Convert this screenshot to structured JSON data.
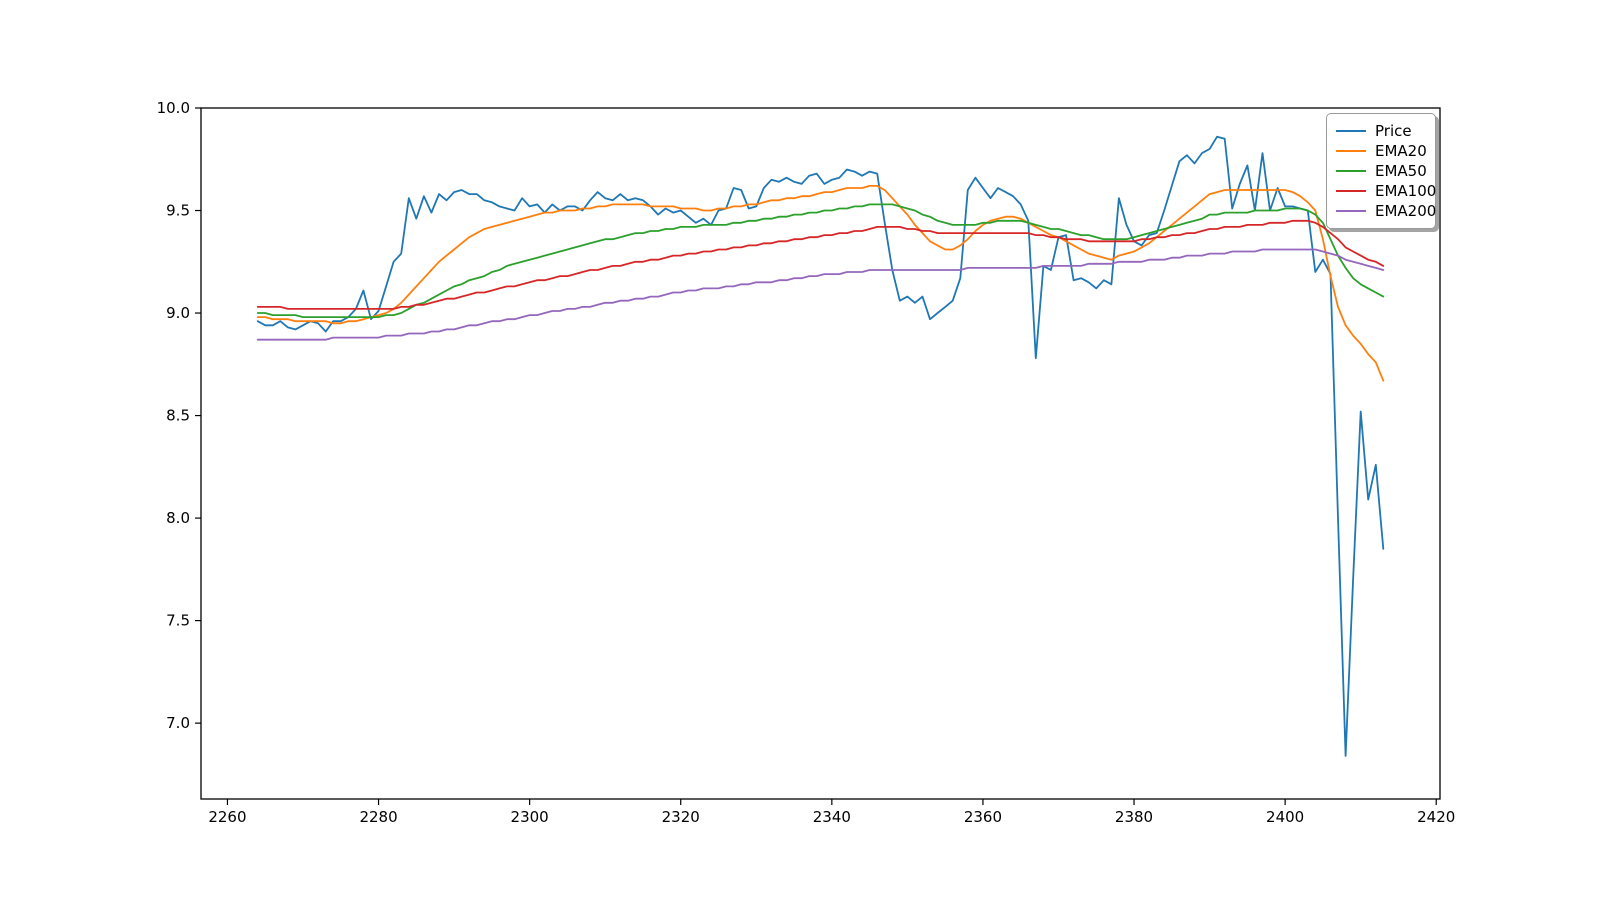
{
  "figure": {
    "background": "#ffffff"
  },
  "axes": {
    "xlim": [
      2256.5,
      2420.5
    ],
    "ylim": [
      6.63,
      10.0
    ],
    "x_ticks": [
      {
        "value": 2260,
        "label": "2260"
      },
      {
        "value": 2280,
        "label": "2280"
      },
      {
        "value": 2300,
        "label": "2300"
      },
      {
        "value": 2320,
        "label": "2320"
      },
      {
        "value": 2340,
        "label": "2340"
      },
      {
        "value": 2360,
        "label": "2360"
      },
      {
        "value": 2380,
        "label": "2380"
      },
      {
        "value": 2400,
        "label": "2400"
      },
      {
        "value": 2420,
        "label": "2420"
      }
    ],
    "y_ticks": [
      {
        "value": 7.0,
        "label": "7.0"
      },
      {
        "value": 7.5,
        "label": "7.5"
      },
      {
        "value": 8.0,
        "label": "8.0"
      },
      {
        "value": 8.5,
        "label": "8.5"
      },
      {
        "value": 9.0,
        "label": "9.0"
      },
      {
        "value": 9.5,
        "label": "9.5"
      },
      {
        "value": 10.0,
        "label": "10.0"
      }
    ],
    "spine_color": "#000000",
    "grid": false
  },
  "legend": {
    "position": "upper right",
    "entries": [
      {
        "label": "Price",
        "color": "#1f77b4"
      },
      {
        "label": "EMA20",
        "color": "#ff7f0e"
      },
      {
        "label": "EMA50",
        "color": "#2ca02c"
      },
      {
        "label": "EMA100",
        "color": "#d62728"
      },
      {
        "label": "EMA200",
        "color": "#9467bd"
      }
    ]
  },
  "chart_data": {
    "type": "line",
    "title": "",
    "xlabel": "",
    "ylabel": "",
    "xlim": [
      2256.5,
      2420.5
    ],
    "ylim": [
      6.63,
      10.0
    ],
    "grid": false,
    "legend_position": "upper right",
    "x_start": 2264,
    "x_step": 1,
    "series": [
      {
        "name": "Price",
        "color": "#1f77b4",
        "values": [
          8.96,
          8.94,
          8.94,
          8.96,
          8.93,
          8.92,
          8.94,
          8.96,
          8.95,
          8.91,
          8.96,
          8.96,
          8.98,
          9.02,
          9.11,
          8.97,
          9.01,
          9.13,
          9.25,
          9.29,
          9.56,
          9.46,
          9.57,
          9.49,
          9.58,
          9.55,
          9.59,
          9.6,
          9.58,
          9.58,
          9.55,
          9.54,
          9.52,
          9.51,
          9.5,
          9.56,
          9.52,
          9.53,
          9.49,
          9.53,
          9.5,
          9.52,
          9.52,
          9.5,
          9.55,
          9.59,
          9.56,
          9.55,
          9.58,
          9.55,
          9.56,
          9.55,
          9.52,
          9.48,
          9.51,
          9.49,
          9.5,
          9.47,
          9.44,
          9.46,
          9.43,
          9.5,
          9.51,
          9.61,
          9.6,
          9.51,
          9.52,
          9.61,
          9.65,
          9.64,
          9.66,
          9.64,
          9.63,
          9.67,
          9.68,
          9.63,
          9.65,
          9.66,
          9.7,
          9.69,
          9.67,
          9.69,
          9.68,
          9.44,
          9.21,
          9.06,
          9.08,
          9.05,
          9.08,
          8.97,
          9.0,
          9.03,
          9.06,
          9.17,
          9.6,
          9.66,
          9.61,
          9.56,
          9.61,
          9.59,
          9.57,
          9.53,
          9.45,
          8.78,
          9.23,
          9.21,
          9.37,
          9.38,
          9.16,
          9.17,
          9.15,
          9.12,
          9.16,
          9.14,
          9.56,
          9.43,
          9.35,
          9.33,
          9.38,
          9.39,
          9.5,
          9.62,
          9.74,
          9.77,
          9.73,
          9.78,
          9.8,
          9.86,
          9.85,
          9.51,
          9.63,
          9.72,
          9.5,
          9.78,
          9.5,
          9.61,
          9.52,
          9.52,
          9.51,
          9.5,
          9.2,
          9.26,
          9.19,
          8.0,
          6.84,
          7.7,
          8.52,
          8.09,
          8.26,
          7.85
        ]
      },
      {
        "name": "EMA20",
        "color": "#ff7f0e",
        "values": [
          8.98,
          8.98,
          8.97,
          8.97,
          8.97,
          8.96,
          8.96,
          8.96,
          8.96,
          8.96,
          8.95,
          8.95,
          8.96,
          8.96,
          8.97,
          8.98,
          8.99,
          9.0,
          9.02,
          9.05,
          9.09,
          9.13,
          9.17,
          9.21,
          9.25,
          9.28,
          9.31,
          9.34,
          9.37,
          9.39,
          9.41,
          9.42,
          9.43,
          9.44,
          9.45,
          9.46,
          9.47,
          9.48,
          9.49,
          9.49,
          9.5,
          9.5,
          9.5,
          9.51,
          9.51,
          9.52,
          9.52,
          9.53,
          9.53,
          9.53,
          9.53,
          9.53,
          9.52,
          9.52,
          9.52,
          9.52,
          9.51,
          9.51,
          9.51,
          9.5,
          9.5,
          9.51,
          9.51,
          9.52,
          9.52,
          9.53,
          9.53,
          9.54,
          9.55,
          9.55,
          9.56,
          9.56,
          9.57,
          9.57,
          9.58,
          9.59,
          9.59,
          9.6,
          9.61,
          9.61,
          9.61,
          9.62,
          9.62,
          9.6,
          9.56,
          9.52,
          9.48,
          9.43,
          9.39,
          9.35,
          9.33,
          9.31,
          9.31,
          9.33,
          9.36,
          9.4,
          9.43,
          9.45,
          9.46,
          9.47,
          9.47,
          9.46,
          9.44,
          9.42,
          9.4,
          9.38,
          9.37,
          9.35,
          9.33,
          9.31,
          9.29,
          9.28,
          9.27,
          9.26,
          9.28,
          9.29,
          9.3,
          9.32,
          9.34,
          9.37,
          9.4,
          9.43,
          9.46,
          9.49,
          9.52,
          9.55,
          9.58,
          9.59,
          9.6,
          9.6,
          9.6,
          9.6,
          9.6,
          9.6,
          9.6,
          9.6,
          9.6,
          9.59,
          9.57,
          9.54,
          9.5,
          9.36,
          9.18,
          9.03,
          8.94,
          8.89,
          8.85,
          8.8,
          8.76,
          8.67
        ]
      },
      {
        "name": "EMA50",
        "color": "#2ca02c",
        "values": [
          9.0,
          9.0,
          8.99,
          8.99,
          8.99,
          8.99,
          8.98,
          8.98,
          8.98,
          8.98,
          8.98,
          8.98,
          8.98,
          8.98,
          8.98,
          8.98,
          8.98,
          8.99,
          8.99,
          9.0,
          9.02,
          9.04,
          9.05,
          9.07,
          9.09,
          9.11,
          9.13,
          9.14,
          9.16,
          9.17,
          9.18,
          9.2,
          9.21,
          9.23,
          9.24,
          9.25,
          9.26,
          9.27,
          9.28,
          9.29,
          9.3,
          9.31,
          9.32,
          9.33,
          9.34,
          9.35,
          9.36,
          9.36,
          9.37,
          9.38,
          9.39,
          9.39,
          9.4,
          9.4,
          9.41,
          9.41,
          9.42,
          9.42,
          9.42,
          9.43,
          9.43,
          9.43,
          9.43,
          9.44,
          9.44,
          9.45,
          9.45,
          9.46,
          9.46,
          9.47,
          9.47,
          9.48,
          9.48,
          9.49,
          9.49,
          9.5,
          9.5,
          9.51,
          9.51,
          9.52,
          9.52,
          9.53,
          9.53,
          9.53,
          9.53,
          9.52,
          9.51,
          9.5,
          9.48,
          9.47,
          9.45,
          9.44,
          9.43,
          9.43,
          9.43,
          9.43,
          9.44,
          9.44,
          9.45,
          9.45,
          9.45,
          9.45,
          9.44,
          9.43,
          9.42,
          9.41,
          9.41,
          9.4,
          9.39,
          9.38,
          9.38,
          9.37,
          9.36,
          9.36,
          9.36,
          9.36,
          9.37,
          9.38,
          9.39,
          9.4,
          9.41,
          9.42,
          9.43,
          9.44,
          9.45,
          9.46,
          9.48,
          9.48,
          9.49,
          9.49,
          9.49,
          9.49,
          9.5,
          9.5,
          9.5,
          9.5,
          9.51,
          9.51,
          9.51,
          9.5,
          9.48,
          9.44,
          9.36,
          9.28,
          9.22,
          9.17,
          9.14,
          9.12,
          9.1,
          9.08
        ]
      },
      {
        "name": "EMA100",
        "color": "#d62728",
        "values": [
          9.03,
          9.03,
          9.03,
          9.03,
          9.02,
          9.02,
          9.02,
          9.02,
          9.02,
          9.02,
          9.02,
          9.02,
          9.02,
          9.02,
          9.02,
          9.02,
          9.02,
          9.02,
          9.02,
          9.03,
          9.03,
          9.04,
          9.04,
          9.05,
          9.06,
          9.07,
          9.07,
          9.08,
          9.09,
          9.1,
          9.1,
          9.11,
          9.12,
          9.13,
          9.13,
          9.14,
          9.15,
          9.16,
          9.16,
          9.17,
          9.18,
          9.18,
          9.19,
          9.2,
          9.21,
          9.21,
          9.22,
          9.23,
          9.23,
          9.24,
          9.25,
          9.25,
          9.26,
          9.26,
          9.27,
          9.28,
          9.28,
          9.29,
          9.29,
          9.3,
          9.3,
          9.31,
          9.31,
          9.32,
          9.32,
          9.33,
          9.33,
          9.34,
          9.34,
          9.35,
          9.35,
          9.36,
          9.36,
          9.37,
          9.37,
          9.38,
          9.38,
          9.39,
          9.39,
          9.4,
          9.4,
          9.41,
          9.42,
          9.42,
          9.42,
          9.42,
          9.41,
          9.41,
          9.4,
          9.4,
          9.39,
          9.39,
          9.39,
          9.39,
          9.39,
          9.39,
          9.39,
          9.39,
          9.39,
          9.39,
          9.39,
          9.39,
          9.39,
          9.38,
          9.38,
          9.37,
          9.37,
          9.36,
          9.36,
          9.36,
          9.35,
          9.35,
          9.35,
          9.35,
          9.35,
          9.35,
          9.35,
          9.36,
          9.36,
          9.37,
          9.37,
          9.38,
          9.38,
          9.39,
          9.39,
          9.4,
          9.41,
          9.41,
          9.42,
          9.42,
          9.42,
          9.43,
          9.43,
          9.43,
          9.44,
          9.44,
          9.44,
          9.45,
          9.45,
          9.45,
          9.44,
          9.42,
          9.39,
          9.36,
          9.32,
          9.3,
          9.28,
          9.26,
          9.25,
          9.23
        ]
      },
      {
        "name": "EMA200",
        "color": "#9467bd",
        "values": [
          8.87,
          8.87,
          8.87,
          8.87,
          8.87,
          8.87,
          8.87,
          8.87,
          8.87,
          8.87,
          8.88,
          8.88,
          8.88,
          8.88,
          8.88,
          8.88,
          8.88,
          8.89,
          8.89,
          8.89,
          8.9,
          8.9,
          8.9,
          8.91,
          8.91,
          8.92,
          8.92,
          8.93,
          8.94,
          8.94,
          8.95,
          8.96,
          8.96,
          8.97,
          8.97,
          8.98,
          8.99,
          8.99,
          9.0,
          9.01,
          9.01,
          9.02,
          9.02,
          9.03,
          9.03,
          9.04,
          9.05,
          9.05,
          9.06,
          9.06,
          9.07,
          9.07,
          9.08,
          9.08,
          9.09,
          9.1,
          9.1,
          9.11,
          9.11,
          9.12,
          9.12,
          9.12,
          9.13,
          9.13,
          9.14,
          9.14,
          9.15,
          9.15,
          9.15,
          9.16,
          9.16,
          9.17,
          9.17,
          9.18,
          9.18,
          9.19,
          9.19,
          9.19,
          9.2,
          9.2,
          9.2,
          9.21,
          9.21,
          9.21,
          9.21,
          9.21,
          9.21,
          9.21,
          9.21,
          9.21,
          9.21,
          9.21,
          9.21,
          9.21,
          9.22,
          9.22,
          9.22,
          9.22,
          9.22,
          9.22,
          9.22,
          9.22,
          9.22,
          9.22,
          9.23,
          9.23,
          9.23,
          9.23,
          9.23,
          9.23,
          9.24,
          9.24,
          9.24,
          9.24,
          9.25,
          9.25,
          9.25,
          9.25,
          9.26,
          9.26,
          9.26,
          9.27,
          9.27,
          9.28,
          9.28,
          9.28,
          9.29,
          9.29,
          9.29,
          9.3,
          9.3,
          9.3,
          9.3,
          9.31,
          9.31,
          9.31,
          9.31,
          9.31,
          9.31,
          9.31,
          9.31,
          9.3,
          9.29,
          9.28,
          9.26,
          9.25,
          9.24,
          9.23,
          9.22,
          9.21
        ]
      }
    ]
  }
}
